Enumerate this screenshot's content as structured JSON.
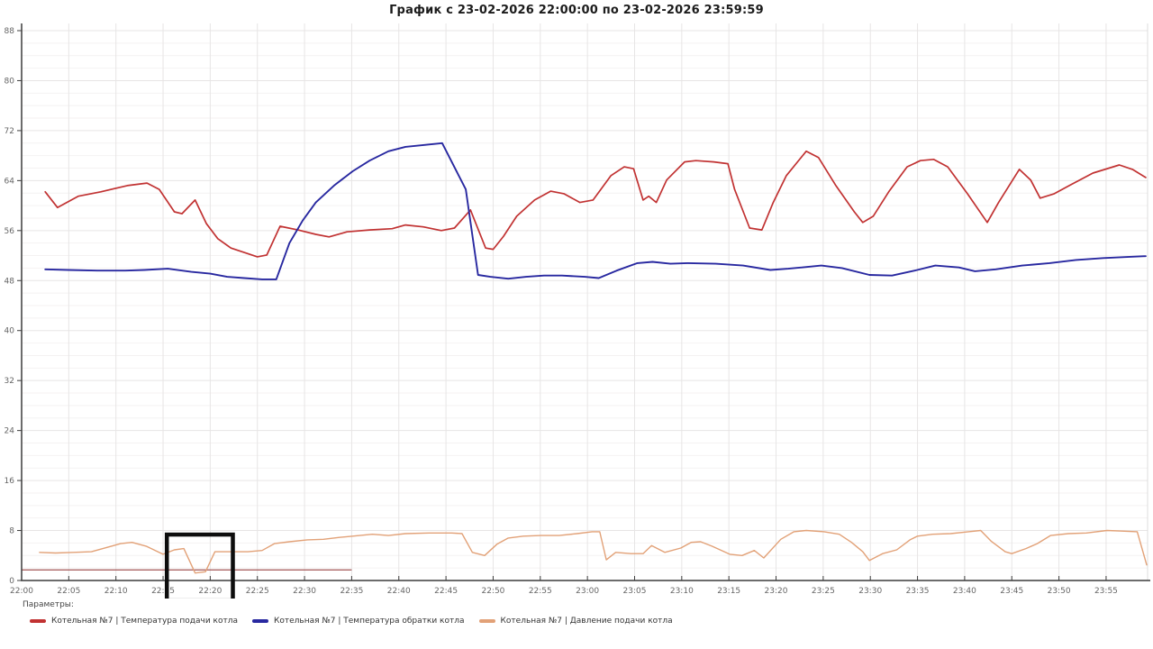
{
  "title": "График с 23-02-2026 22:00:00 по 23-02-2026 23:59:59",
  "legend": {
    "label": "Параметры:",
    "items": [
      {
        "key": "supply-temperature",
        "name": "Котельная №7 | Температура подачи котла",
        "color": "#c13232"
      },
      {
        "key": "return-temperature",
        "name": "Котельная №7 | Температура обратки котла",
        "color": "#2828a0"
      },
      {
        "key": "supply-pressure",
        "name": "Котельная №7 | Давление подачи котла",
        "color": "#e2a177"
      }
    ]
  },
  "chart_data": {
    "type": "line",
    "title": "График с 23-02-2026 22:00:00 по 23-02-2026 23:59:59",
    "time_base": "points are [minutes after 22:00, value]",
    "x_axis": {
      "start": "22:00:00",
      "end": "23:59:59",
      "tick_interval_minutes": 5,
      "tick_labels": [
        "22:00",
        "22:05",
        "22:10",
        "22:15",
        "22:20",
        "22:25",
        "22:30",
        "22:35",
        "22:40",
        "22:45",
        "22:50",
        "22:55",
        "23:00",
        "23:05",
        "23:10",
        "23:15",
        "23:20",
        "23:25",
        "23:30",
        "23:35",
        "23:40",
        "23:45",
        "23:50",
        "23:55"
      ]
    },
    "y_axis": {
      "min": 0,
      "max": 88,
      "tick_step": 8,
      "ticks": [
        0,
        8,
        16,
        24,
        32,
        40,
        48,
        56,
        64,
        72,
        80,
        88
      ]
    },
    "grid": {
      "major_color": "#e7e5e5",
      "minor_color": "#f4f2f2",
      "minor_step": 2,
      "axis_color": "#3c3c3c",
      "tick_text_color": "#666666",
      "right_border_color": "#dcdcdc"
    },
    "legend_position": "bottom-left",
    "series": [
      {
        "key": "supply-temperature",
        "name": "Котельная №7 | Температура подачи котла",
        "color": "#c13232",
        "width": 1.7,
        "points": [
          [
            2.5,
            62.2
          ],
          [
            3.8,
            59.7
          ],
          [
            6,
            61.5
          ],
          [
            8.4,
            62.2
          ],
          [
            11.2,
            63.2
          ],
          [
            13.3,
            63.6
          ],
          [
            14.6,
            62.6
          ],
          [
            16.2,
            59
          ],
          [
            17,
            58.7
          ],
          [
            18.4,
            60.9
          ],
          [
            19.6,
            57.1
          ],
          [
            20.8,
            54.7
          ],
          [
            22.2,
            53.2
          ],
          [
            23.6,
            52.5
          ],
          [
            25,
            51.8
          ],
          [
            26,
            52.1
          ],
          [
            27.4,
            56.7
          ],
          [
            29.3,
            56.1
          ],
          [
            31.2,
            55.4
          ],
          [
            32.6,
            55
          ],
          [
            34.5,
            55.8
          ],
          [
            36.9,
            56.1
          ],
          [
            39.3,
            56.3
          ],
          [
            40.7,
            56.9
          ],
          [
            42.6,
            56.6
          ],
          [
            44.5,
            56
          ],
          [
            45.9,
            56.4
          ],
          [
            47.6,
            59.3
          ],
          [
            49.2,
            53.2
          ],
          [
            50,
            53
          ],
          [
            51.1,
            55.1
          ],
          [
            52.5,
            58.3
          ],
          [
            54.4,
            60.9
          ],
          [
            56.1,
            62.3
          ],
          [
            57.5,
            61.9
          ],
          [
            59.2,
            60.5
          ],
          [
            60.6,
            60.9
          ],
          [
            62.5,
            64.8
          ],
          [
            63.9,
            66.2
          ],
          [
            64.9,
            65.9
          ],
          [
            65.9,
            60.9
          ],
          [
            66.5,
            61.5
          ],
          [
            67.3,
            60.5
          ],
          [
            68.4,
            64.1
          ],
          [
            70.3,
            67
          ],
          [
            71.5,
            67.2
          ],
          [
            73.4,
            67
          ],
          [
            74.9,
            66.7
          ],
          [
            75.6,
            62.6
          ],
          [
            77.2,
            56.4
          ],
          [
            78.5,
            56.1
          ],
          [
            79.7,
            60.5
          ],
          [
            81.1,
            64.8
          ],
          [
            83.2,
            68.7
          ],
          [
            84.5,
            67.7
          ],
          [
            86.3,
            63.3
          ],
          [
            88.3,
            59
          ],
          [
            89.2,
            57.3
          ],
          [
            90.3,
            58.3
          ],
          [
            92,
            62.3
          ],
          [
            93.9,
            66.2
          ],
          [
            95.3,
            67.2
          ],
          [
            96.7,
            67.4
          ],
          [
            98.2,
            66.2
          ],
          [
            100.3,
            61.9
          ],
          [
            102.4,
            57.3
          ],
          [
            103.6,
            60.5
          ],
          [
            105.8,
            65.8
          ],
          [
            107,
            64.1
          ],
          [
            108,
            61.2
          ],
          [
            109.5,
            61.9
          ],
          [
            111.2,
            63.3
          ],
          [
            113.6,
            65.2
          ],
          [
            116.4,
            66.5
          ],
          [
            117.8,
            65.8
          ],
          [
            119.2,
            64.5
          ]
        ]
      },
      {
        "key": "return-temperature",
        "name": "Котельная №7 | Температура обратки котла",
        "color": "#2828a0",
        "width": 1.9,
        "points": [
          [
            2.5,
            49.8
          ],
          [
            5,
            49.7
          ],
          [
            8,
            49.6
          ],
          [
            11,
            49.6
          ],
          [
            13,
            49.7
          ],
          [
            15.5,
            49.9
          ],
          [
            18,
            49.4
          ],
          [
            20,
            49.1
          ],
          [
            21.8,
            48.6
          ],
          [
            23.6,
            48.4
          ],
          [
            25.5,
            48.2
          ],
          [
            27,
            48.2
          ],
          [
            28.4,
            54
          ],
          [
            29.8,
            57.6
          ],
          [
            31.2,
            60.5
          ],
          [
            33.2,
            63.3
          ],
          [
            35.1,
            65.5
          ],
          [
            36.9,
            67.2
          ],
          [
            38.9,
            68.7
          ],
          [
            40.7,
            69.4
          ],
          [
            42.6,
            69.7
          ],
          [
            44.6,
            70
          ],
          [
            47.1,
            62.6
          ],
          [
            48.4,
            48.9
          ],
          [
            49.7,
            48.6
          ],
          [
            51.6,
            48.3
          ],
          [
            53.5,
            48.6
          ],
          [
            55.4,
            48.8
          ],
          [
            57.3,
            48.8
          ],
          [
            59.7,
            48.6
          ],
          [
            61.2,
            48.4
          ],
          [
            63.1,
            49.6
          ],
          [
            65.3,
            50.8
          ],
          [
            66.9,
            51
          ],
          [
            68.8,
            50.7
          ],
          [
            70.7,
            50.8
          ],
          [
            73.6,
            50.7
          ],
          [
            76.5,
            50.4
          ],
          [
            79.4,
            49.7
          ],
          [
            81.3,
            49.9
          ],
          [
            84.8,
            50.4
          ],
          [
            87,
            50
          ],
          [
            89.9,
            48.9
          ],
          [
            92.3,
            48.8
          ],
          [
            94.7,
            49.6
          ],
          [
            96.9,
            50.4
          ],
          [
            99.4,
            50.1
          ],
          [
            101.1,
            49.5
          ],
          [
            103.3,
            49.8
          ],
          [
            106.1,
            50.4
          ],
          [
            109,
            50.8
          ],
          [
            111.8,
            51.3
          ],
          [
            114.7,
            51.6
          ],
          [
            117.5,
            51.8
          ],
          [
            119.2,
            51.9
          ]
        ]
      },
      {
        "key": "supply-pressure",
        "name": "Котельная №7 | Давление подачи котла",
        "color": "#e2a177",
        "width": 1.4,
        "points": [
          [
            1.9,
            4.5
          ],
          [
            3.6,
            4.4
          ],
          [
            5.5,
            4.5
          ],
          [
            7.4,
            4.6
          ],
          [
            10.5,
            5.9
          ],
          [
            11.7,
            6.1
          ],
          [
            13.2,
            5.5
          ],
          [
            15,
            4.2
          ],
          [
            16.2,
            4.9
          ],
          [
            17.2,
            5.1
          ],
          [
            18.4,
            1.2
          ],
          [
            19.5,
            1.4
          ],
          [
            20.5,
            4.6
          ],
          [
            22,
            4.6
          ],
          [
            24,
            4.6
          ],
          [
            25.5,
            4.8
          ],
          [
            26.8,
            5.9
          ],
          [
            28.4,
            6.2
          ],
          [
            30.3,
            6.5
          ],
          [
            32,
            6.6
          ],
          [
            33.7,
            6.9
          ],
          [
            35.1,
            7.1
          ],
          [
            37.2,
            7.4
          ],
          [
            38.9,
            7.2
          ],
          [
            40.7,
            7.5
          ],
          [
            43.2,
            7.6
          ],
          [
            45.6,
            7.6
          ],
          [
            46.7,
            7.5
          ],
          [
            47.8,
            4.5
          ],
          [
            49.1,
            4
          ],
          [
            50.4,
            5.8
          ],
          [
            51.6,
            6.8
          ],
          [
            53.2,
            7.1
          ],
          [
            55.1,
            7.2
          ],
          [
            57,
            7.2
          ],
          [
            58.9,
            7.5
          ],
          [
            60.5,
            7.8
          ],
          [
            61.3,
            7.8
          ],
          [
            62,
            3.3
          ],
          [
            63,
            4.5
          ],
          [
            64.6,
            4.3
          ],
          [
            65.9,
            4.3
          ],
          [
            66.8,
            5.6
          ],
          [
            68.2,
            4.5
          ],
          [
            69.9,
            5.2
          ],
          [
            71,
            6.1
          ],
          [
            72,
            6.2
          ],
          [
            73.2,
            5.5
          ],
          [
            75.1,
            4.2
          ],
          [
            76.4,
            4
          ],
          [
            77.7,
            4.8
          ],
          [
            78.7,
            3.6
          ],
          [
            80.5,
            6.6
          ],
          [
            81.9,
            7.8
          ],
          [
            83.2,
            8
          ],
          [
            85.1,
            7.8
          ],
          [
            86.7,
            7.4
          ],
          [
            88,
            6.1
          ],
          [
            89.2,
            4.6
          ],
          [
            89.9,
            3.2
          ],
          [
            91.3,
            4.3
          ],
          [
            92.8,
            4.9
          ],
          [
            94.2,
            6.5
          ],
          [
            95,
            7.1
          ],
          [
            96.6,
            7.4
          ],
          [
            98.5,
            7.5
          ],
          [
            100.4,
            7.8
          ],
          [
            101.7,
            8
          ],
          [
            102.8,
            6.3
          ],
          [
            104.3,
            4.6
          ],
          [
            105,
            4.3
          ],
          [
            106.5,
            5.1
          ],
          [
            107.7,
            5.9
          ],
          [
            109.1,
            7.2
          ],
          [
            111,
            7.5
          ],
          [
            112.9,
            7.6
          ],
          [
            115.1,
            8
          ],
          [
            116.7,
            7.9
          ],
          [
            118.3,
            7.8
          ],
          [
            119.3,
            2.5
          ]
        ]
      }
    ],
    "threshold_line": {
      "color": "#a25555",
      "value": 1.7,
      "t_start": 0,
      "t_end": 35
    },
    "annotation_box": {
      "color": "#0d0d0d",
      "t_start": 15.4,
      "t_end": 22.4,
      "v_top": 7.35,
      "v_bottom": -3.2
    }
  }
}
